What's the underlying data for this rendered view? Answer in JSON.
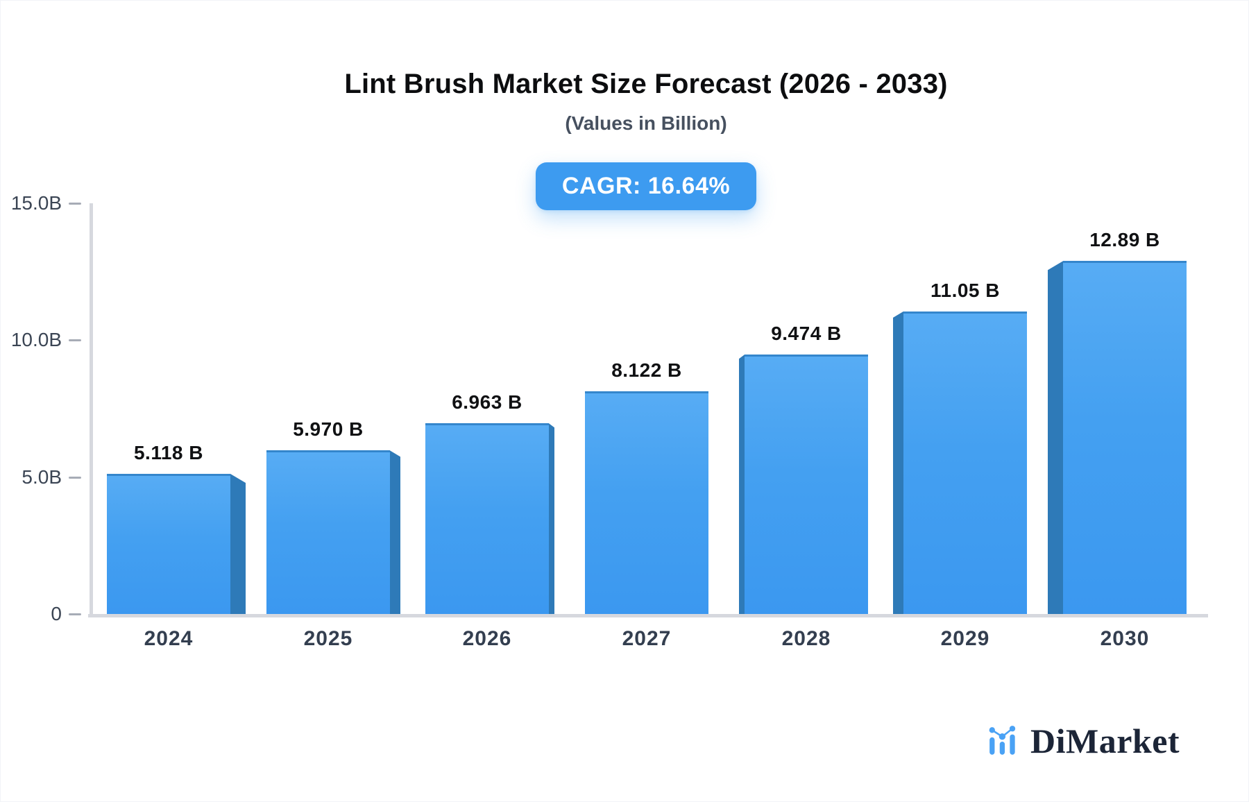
{
  "header": {
    "title": "Lint Brush Market Size Forecast (2026 - 2033)",
    "subtitle": "(Values in Billion)",
    "cagr_label": "CAGR: 16.64%"
  },
  "chart_data": {
    "type": "bar",
    "title": "Lint Brush Market Size Forecast (2026 - 2033)",
    "subtitle": "(Values in Billion)",
    "annotation": "CAGR: 16.64%",
    "categories": [
      "2024",
      "2025",
      "2026",
      "2027",
      "2028",
      "2029",
      "2030"
    ],
    "values": [
      5.118,
      5.97,
      6.963,
      8.122,
      9.474,
      11.05,
      12.89
    ],
    "value_labels": [
      "5.118 B",
      "5.970 B",
      "6.963 B",
      "8.122 B",
      "9.474 B",
      "11.05 B",
      "12.89 B"
    ],
    "xlabel": "",
    "ylabel": "",
    "ylim": [
      0,
      15
    ],
    "yticks": [
      {
        "value": 0,
        "label": "0"
      },
      {
        "value": 5,
        "label": "5.0B"
      },
      {
        "value": 10,
        "label": "10.0B"
      },
      {
        "value": 15,
        "label": "15.0B"
      }
    ],
    "grid": false,
    "legend": null,
    "bar_style": "3d-perspective",
    "colors": {
      "bar_face_top": "#57acf4",
      "bar_face_bottom": "#3b98f0",
      "bar_face_top_edge": "#3486cc",
      "bar_side": "#2e7ab8",
      "axis_line": "#d6d8de",
      "tick_dash": "#a7acb6",
      "tick_label": "#3b4554",
      "x_label": "#333e4f",
      "value_label": "#101113",
      "badge_bg": "#3d9bf0",
      "badge_text": "#ffffff"
    }
  },
  "branding": {
    "logo_text": "DiMarket",
    "logo_icon": "bar-chart-logo-icon",
    "logo_icon_color": "#4aa2f5",
    "logo_text_color": "#1c2537"
  }
}
